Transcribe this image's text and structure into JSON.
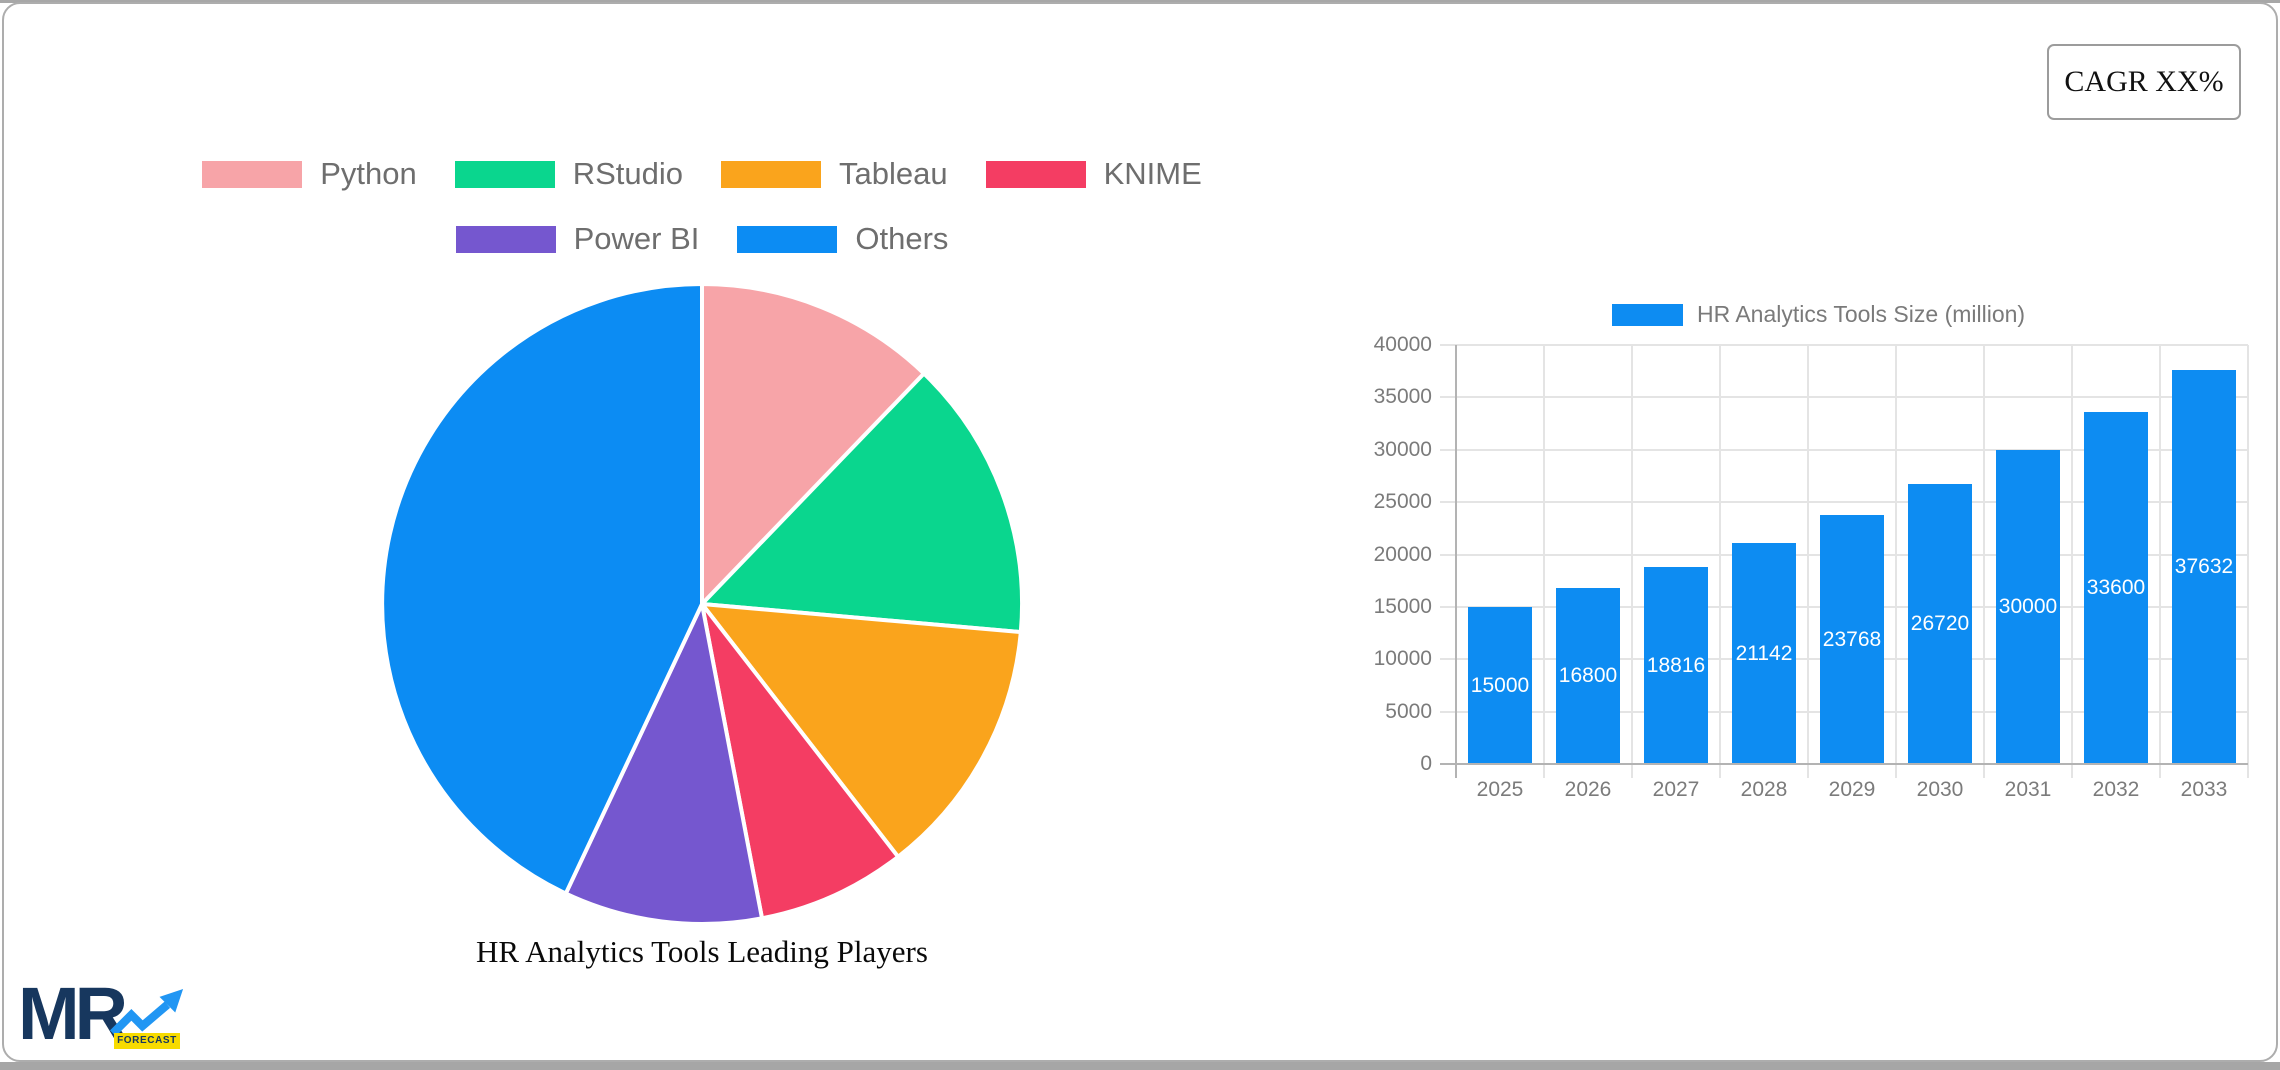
{
  "cagr": {
    "label": "CAGR XX%"
  },
  "logo": {
    "brand": "MR",
    "sub": "FORECAST",
    "brand_color": "#17375E",
    "arrow_color": "#2196F3",
    "badge_color": "#F7DB00"
  },
  "chart_data": [
    {
      "type": "pie",
      "title": "HR Analytics Tools Leading Players",
      "labels": [
        "Python",
        "RStudio",
        "Tableau",
        "KNIME",
        "Power BI",
        "Others"
      ],
      "values": [
        12.2,
        14.2,
        13.1,
        7.5,
        10.0,
        43.0
      ],
      "unit": "percent, estimated from slice angles (no numeric labels shown)",
      "colors": [
        "#F7A4A8",
        "#0AD68E",
        "#FAA41C",
        "#F43D63",
        "#7557CF",
        "#0C8CF3"
      ],
      "legend_position": "top",
      "legend_text_color": "#6E6E6E",
      "slice_border_color": "#FFFFFF"
    },
    {
      "type": "bar",
      "legend": "HR Analytics Tools Size (million)",
      "categories": [
        "2025",
        "2026",
        "2027",
        "2028",
        "2029",
        "2030",
        "2031",
        "2032",
        "2033"
      ],
      "values": [
        15000,
        16800,
        18816,
        21142,
        23768,
        26720,
        30000,
        33600,
        37632
      ],
      "bar_color": "#0D8CF2",
      "value_label_color": "#FFFFFF",
      "ylim": [
        0,
        40000
      ],
      "yticks": [
        0,
        5000,
        10000,
        15000,
        20000,
        25000,
        30000,
        35000,
        40000
      ],
      "grid": true,
      "axis_text_color": "#7B7B7B"
    }
  ]
}
